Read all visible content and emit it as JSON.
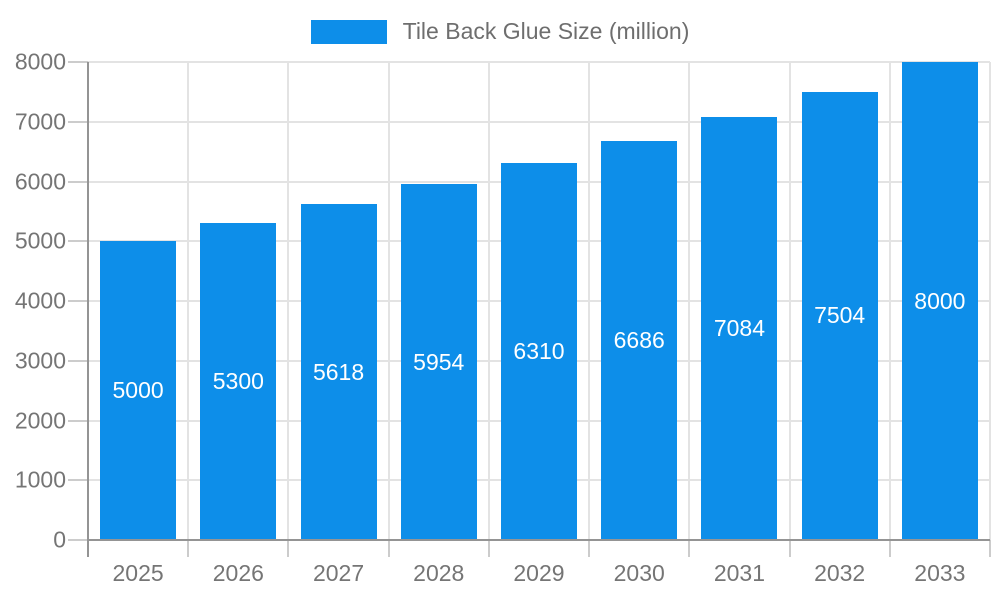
{
  "chart_data": {
    "type": "bar",
    "title": "Tile Back Glue Size (million)",
    "categories": [
      "2025",
      "2026",
      "2027",
      "2028",
      "2029",
      "2030",
      "2031",
      "2032",
      "2033"
    ],
    "values": [
      5000,
      5300,
      5618,
      5954,
      6310,
      6686,
      7084,
      7504,
      8000
    ],
    "yticks": [
      0,
      1000,
      2000,
      3000,
      4000,
      5000,
      6000,
      7000,
      8000
    ],
    "ylim": [
      0,
      8000
    ],
    "xlabel": "",
    "ylabel": "",
    "grid": "on",
    "bar_value_labels": "inside-centered",
    "legend": {
      "position": "top-center",
      "label": "Tile Back Glue Size (million)"
    },
    "colors": {
      "bar": "#0d8ee9",
      "bar_label": "#ffffff",
      "grid": "#e3e3e3",
      "tick": "#cccccc",
      "axis": "#949494",
      "axis_text": "#757575",
      "legend_text": "#6e6e6e",
      "background": "#ffffff"
    }
  }
}
